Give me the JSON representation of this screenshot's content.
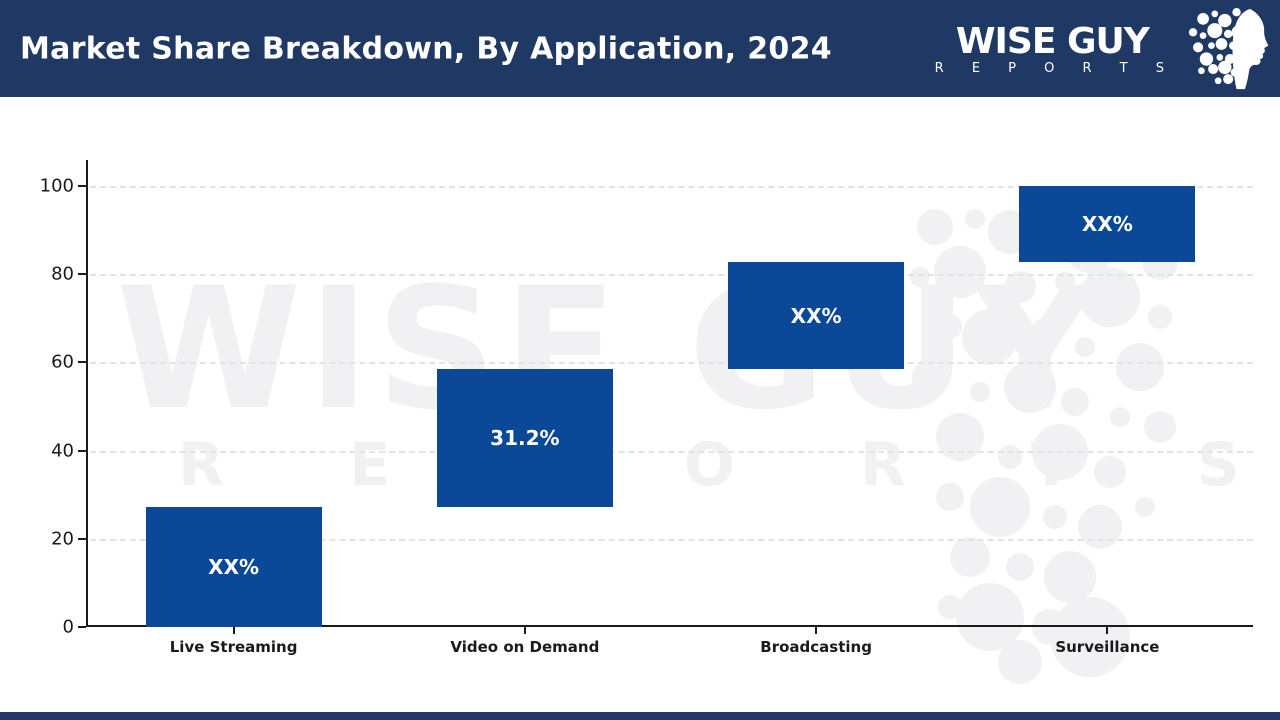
{
  "header": {
    "title": "Market Share Breakdown, By Application, 2024",
    "logo": {
      "line1": "WISE GUY",
      "line2": "R E P O R T S"
    }
  },
  "watermark": {
    "line1": "WISE GUY",
    "line2": "R E P O R T S"
  },
  "colors": {
    "header_bg": "#1f3864",
    "footer_bg": "#1f3864",
    "bar": "#0c4898",
    "bar_label": "#ffffff",
    "grid": "#e3e3e3",
    "axis": "#1a1a1a",
    "watermark": "#f1f1f3"
  },
  "chart_data": {
    "type": "bar",
    "subtype": "floating-waterfall",
    "title": "Market Share Breakdown, By Application, 2024",
    "categories": [
      "Live Streaming",
      "Video on Demand",
      "Broadcasting",
      "Surveillance"
    ],
    "bars": [
      {
        "category": "Live Streaming",
        "start": 0,
        "end": 27.2,
        "label": "XX%"
      },
      {
        "category": "Video on Demand",
        "start": 27.2,
        "end": 58.4,
        "label": "31.2%",
        "value": 31.2
      },
      {
        "category": "Broadcasting",
        "start": 58.4,
        "end": 82.8,
        "label": "XX%"
      },
      {
        "category": "Surveillance",
        "start": 82.8,
        "end": 100,
        "label": "XX%"
      }
    ],
    "yticks": [
      0,
      20,
      40,
      60,
      80,
      100
    ],
    "ylim": [
      0,
      105
    ],
    "xlabel": "",
    "ylabel": "",
    "grid": "horizontal-dashed",
    "legend": "none"
  }
}
